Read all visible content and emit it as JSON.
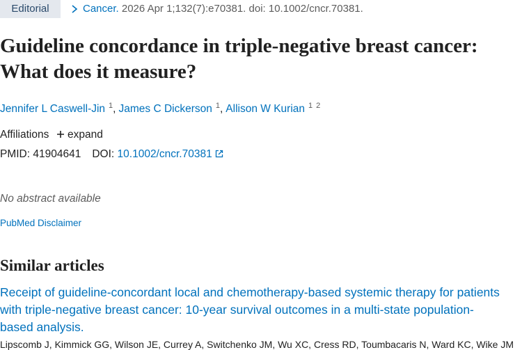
{
  "header": {
    "badge": "Editorial",
    "journal": "Cancer.",
    "citation": "2026 Apr 1;132(7):e70381. doi: 10.1002/cncr.70381."
  },
  "article": {
    "title": "Guideline concordance in triple-negative breast cancer: What does it measure?",
    "authors": [
      {
        "name": "Jennifer L Caswell-Jin",
        "affiliations": [
          "1"
        ],
        "separator": ","
      },
      {
        "name": "James C Dickerson",
        "affiliations": [
          "1"
        ],
        "separator": ","
      },
      {
        "name": "Allison W Kurian",
        "affiliations": [
          "1",
          "2"
        ]
      }
    ],
    "affiliations_label": "Affiliations",
    "expand": "expand",
    "pmid_label": "PMID:",
    "pmid": "41904641",
    "doi_label": "DOI:",
    "doi": "10.1002/cncr.70381",
    "abstract": "No abstract available",
    "disclaimer": "PubMed Disclaimer"
  },
  "similar": {
    "heading": "Similar articles",
    "items": [
      {
        "title": "Receipt of guideline-concordant local and chemotherapy-based systemic therapy for patients with triple-negative breast cancer: 10-year survival outcomes in a multi-state population-based analysis.",
        "authors": "Lipscomb J, Kimmick GG, Wilson JE, Currey A, Switchenko JM, Wu XC, Cress RD, Toumbacaris N, Ward KC, Wike JM"
      }
    ]
  }
}
